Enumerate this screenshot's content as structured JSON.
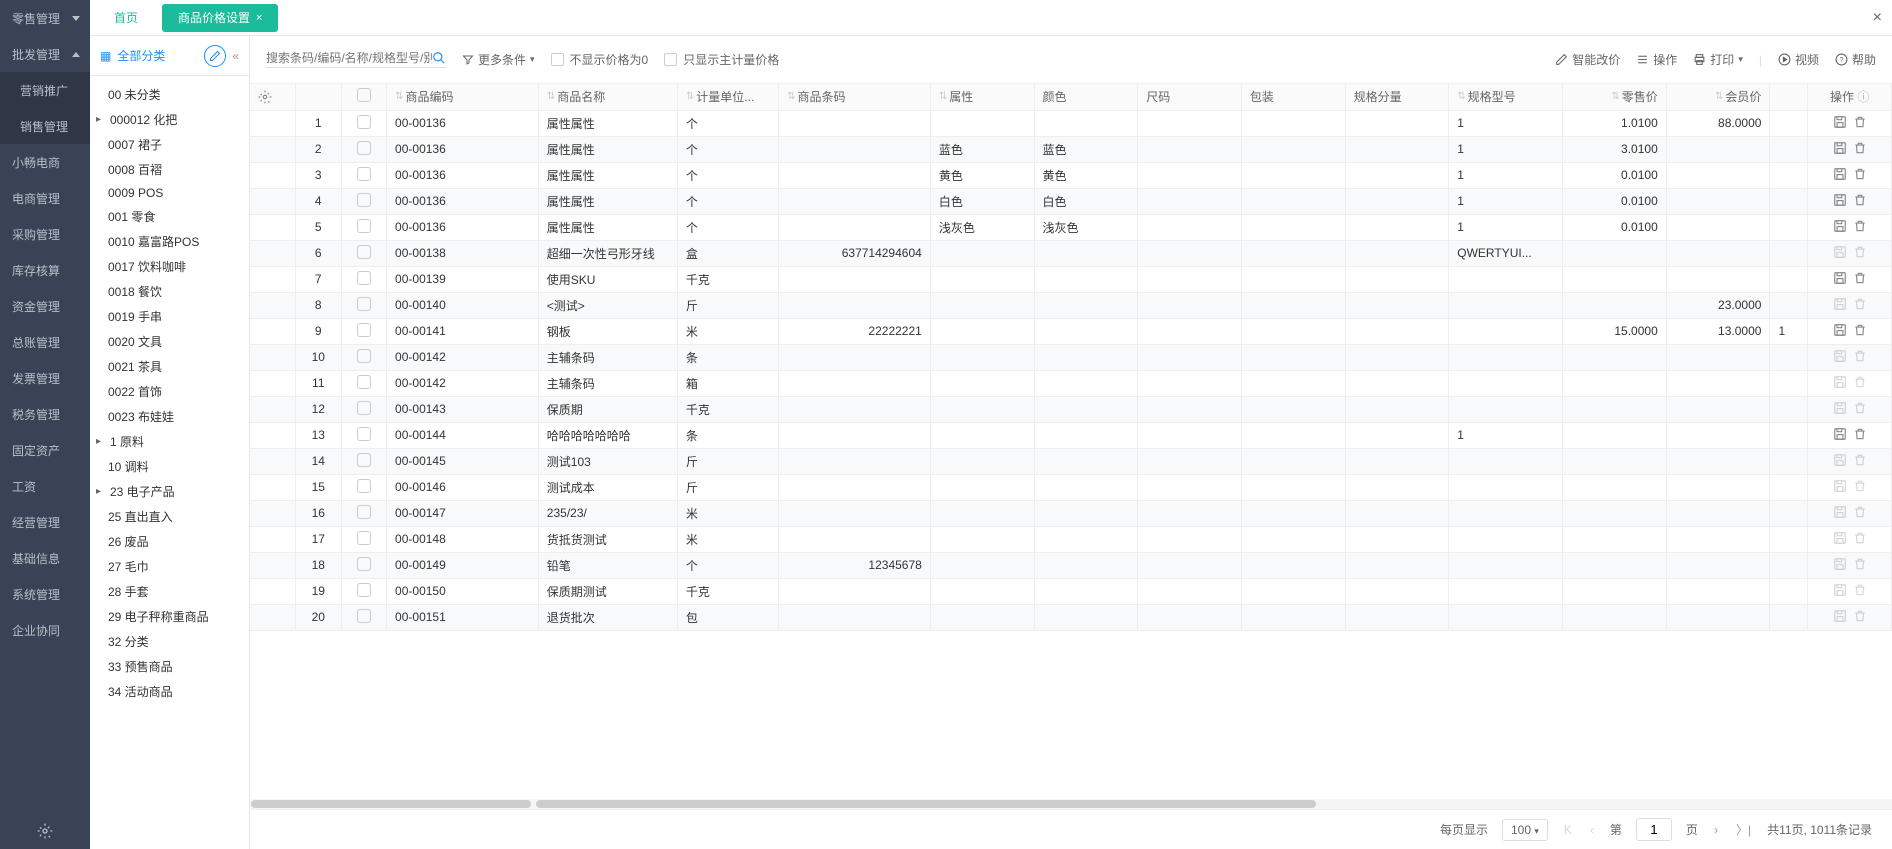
{
  "sidebar": {
    "items": [
      {
        "label": "零售管理",
        "type": "expandable"
      },
      {
        "label": "批发管理",
        "type": "expanded"
      },
      {
        "label": "营销推广",
        "type": "sub"
      },
      {
        "label": "销售管理",
        "type": "sub"
      },
      {
        "label": "小畅电商",
        "type": "normal"
      },
      {
        "label": "电商管理",
        "type": "normal"
      },
      {
        "label": "采购管理",
        "type": "normal"
      },
      {
        "label": "库存核算",
        "type": "normal"
      },
      {
        "label": "资金管理",
        "type": "normal"
      },
      {
        "label": "总账管理",
        "type": "normal"
      },
      {
        "label": "发票管理",
        "type": "normal"
      },
      {
        "label": "税务管理",
        "type": "normal"
      },
      {
        "label": "固定资产",
        "type": "normal"
      },
      {
        "label": "工资",
        "type": "normal"
      },
      {
        "label": "经营管理",
        "type": "normal"
      },
      {
        "label": "基础信息",
        "type": "normal"
      },
      {
        "label": "系统管理",
        "type": "normal"
      },
      {
        "label": "企业协同",
        "type": "normal"
      }
    ]
  },
  "tabs": {
    "home": "首页",
    "active": "商品价格设置"
  },
  "tree": {
    "header": "全部分类",
    "nodes": [
      {
        "label": "00 未分类"
      },
      {
        "label": "000012 化把",
        "children": true
      },
      {
        "label": "0007 裙子"
      },
      {
        "label": "0008 百褶"
      },
      {
        "label": "0009 POS"
      },
      {
        "label": "001 零食"
      },
      {
        "label": "0010 嘉富路POS"
      },
      {
        "label": "0017 饮料咖啡"
      },
      {
        "label": "0018 餐饮"
      },
      {
        "label": "0019 手串"
      },
      {
        "label": "0020 文具"
      },
      {
        "label": "0021 茶具"
      },
      {
        "label": "0022 首饰"
      },
      {
        "label": "0023 布娃娃"
      },
      {
        "label": "1 原料",
        "children": true
      },
      {
        "label": "10 调料"
      },
      {
        "label": "23 电子产品",
        "children": true
      },
      {
        "label": "25 直出直入"
      },
      {
        "label": "26 废品"
      },
      {
        "label": "27 毛巾"
      },
      {
        "label": "28 手套"
      },
      {
        "label": "29 电子秤称重商品"
      },
      {
        "label": "32 分类"
      },
      {
        "label": "33 预售商品"
      },
      {
        "label": "34 活动商品"
      }
    ]
  },
  "toolbar": {
    "search_placeholder": "搜索条码/编码/名称/规格型号/别名",
    "more_conditions": "更多条件",
    "hide_zero_price": "不显示价格为0",
    "only_main_unit": "只显示主计量价格",
    "smart_edit": "智能改价",
    "operation": "操作",
    "print": "打印",
    "video": "视频",
    "help": "帮助"
  },
  "table": {
    "columns": {
      "code": "商品编码",
      "name": "商品名称",
      "unit": "计量单位...",
      "barcode": "商品条码",
      "attr": "属性",
      "color": "颜色",
      "size": "尺码",
      "pack": "包装",
      "spec_wt": "规格分量",
      "spec_model": "规格型号",
      "retail": "零售价",
      "member": "会员价",
      "ops": "操作"
    },
    "rows": [
      {
        "idx": 1,
        "code": "00-00136",
        "name": "属性属性",
        "unit": "个",
        "barcode": "",
        "attr": "",
        "color": "",
        "spec_model": "1",
        "retail": "1.0100",
        "member": "88.0000",
        "enabled": true
      },
      {
        "idx": 2,
        "code": "00-00136",
        "name": "属性属性",
        "unit": "个",
        "barcode": "",
        "attr": "蓝色",
        "color": "蓝色",
        "spec_model": "1",
        "retail": "3.0100",
        "member": "",
        "enabled": true
      },
      {
        "idx": 3,
        "code": "00-00136",
        "name": "属性属性",
        "unit": "个",
        "barcode": "",
        "attr": "黄色",
        "color": "黄色",
        "spec_model": "1",
        "retail": "0.0100",
        "member": "",
        "enabled": true
      },
      {
        "idx": 4,
        "code": "00-00136",
        "name": "属性属性",
        "unit": "个",
        "barcode": "",
        "attr": "白色",
        "color": "白色",
        "spec_model": "1",
        "retail": "0.0100",
        "member": "",
        "enabled": true
      },
      {
        "idx": 5,
        "code": "00-00136",
        "name": "属性属性",
        "unit": "个",
        "barcode": "",
        "attr": "浅灰色",
        "color": "浅灰色",
        "spec_model": "1",
        "retail": "0.0100",
        "member": "",
        "enabled": true
      },
      {
        "idx": 6,
        "code": "00-00138",
        "name": "超细一次性弓形牙线",
        "unit": "盒",
        "barcode": "637714294604",
        "attr": "",
        "color": "",
        "spec_model": "QWERTYUI...",
        "retail": "",
        "member": "",
        "enabled": false
      },
      {
        "idx": 7,
        "code": "00-00139",
        "name": "使用SKU",
        "unit": "千克",
        "barcode": "",
        "attr": "",
        "color": "",
        "spec_model": "",
        "retail": "",
        "member": "",
        "enabled": true
      },
      {
        "idx": 8,
        "code": "00-00140",
        "name": "<测试>",
        "unit": "斤",
        "barcode": "",
        "attr": "",
        "color": "",
        "spec_model": "",
        "retail": "",
        "member": "23.0000",
        "enabled": false
      },
      {
        "idx": 9,
        "code": "00-00141",
        "name": "钢板",
        "unit": "米",
        "barcode": "22222221",
        "attr": "",
        "color": "",
        "spec_model": "",
        "retail": "15.0000",
        "member": "13.0000",
        "extra": "1",
        "enabled": true
      },
      {
        "idx": 10,
        "code": "00-00142",
        "name": "主辅条码",
        "unit": "条",
        "barcode": "",
        "attr": "",
        "color": "",
        "spec_model": "",
        "retail": "",
        "member": "",
        "enabled": false
      },
      {
        "idx": 11,
        "code": "00-00142",
        "name": "主辅条码",
        "unit": "箱",
        "barcode": "",
        "attr": "",
        "color": "",
        "spec_model": "",
        "retail": "",
        "member": "",
        "enabled": false
      },
      {
        "idx": 12,
        "code": "00-00143",
        "name": "保质期",
        "unit": "千克",
        "barcode": "",
        "attr": "",
        "color": "",
        "spec_model": "",
        "retail": "",
        "member": "",
        "enabled": false
      },
      {
        "idx": 13,
        "code": "00-00144",
        "name": "哈哈哈哈哈哈哈",
        "unit": "条",
        "barcode": "",
        "attr": "",
        "color": "",
        "spec_model": "1",
        "retail": "",
        "member": "",
        "enabled": true
      },
      {
        "idx": 14,
        "code": "00-00145",
        "name": "测试103",
        "unit": "斤",
        "barcode": "",
        "attr": "",
        "color": "",
        "spec_model": "",
        "retail": "",
        "member": "",
        "enabled": false
      },
      {
        "idx": 15,
        "code": "00-00146",
        "name": "测试成本",
        "unit": "斤",
        "barcode": "",
        "attr": "",
        "color": "",
        "spec_model": "",
        "retail": "",
        "member": "",
        "enabled": false
      },
      {
        "idx": 16,
        "code": "00-00147",
        "name": "235/23/",
        "unit": "米",
        "barcode": "",
        "attr": "",
        "color": "",
        "spec_model": "",
        "retail": "",
        "member": "",
        "enabled": false
      },
      {
        "idx": 17,
        "code": "00-00148",
        "name": "货抵货测试",
        "unit": "米",
        "barcode": "",
        "attr": "",
        "color": "",
        "spec_model": "",
        "retail": "",
        "member": "",
        "enabled": false
      },
      {
        "idx": 18,
        "code": "00-00149",
        "name": "铅笔",
        "unit": "个",
        "barcode": "12345678",
        "attr": "",
        "color": "",
        "spec_model": "",
        "retail": "",
        "member": "",
        "enabled": false
      },
      {
        "idx": 19,
        "code": "00-00150",
        "name": "保质期测试",
        "unit": "千克",
        "barcode": "",
        "attr": "",
        "color": "",
        "spec_model": "",
        "retail": "",
        "member": "",
        "enabled": false
      },
      {
        "idx": 20,
        "code": "00-00151",
        "name": "退货批次",
        "unit": "包",
        "barcode": "",
        "attr": "",
        "color": "",
        "spec_model": "",
        "retail": "",
        "member": "",
        "enabled": false
      }
    ]
  },
  "pagination": {
    "per_page_label": "每页显示",
    "per_page_value": "100",
    "page_label_prefix": "第",
    "page_value": "1",
    "page_label_suffix": "页",
    "summary": "共11页, 1011条记录"
  },
  "colors": {
    "sidebar_bg": "#3a4355",
    "accent": "#1bbc9c",
    "link": "#1890ff"
  }
}
